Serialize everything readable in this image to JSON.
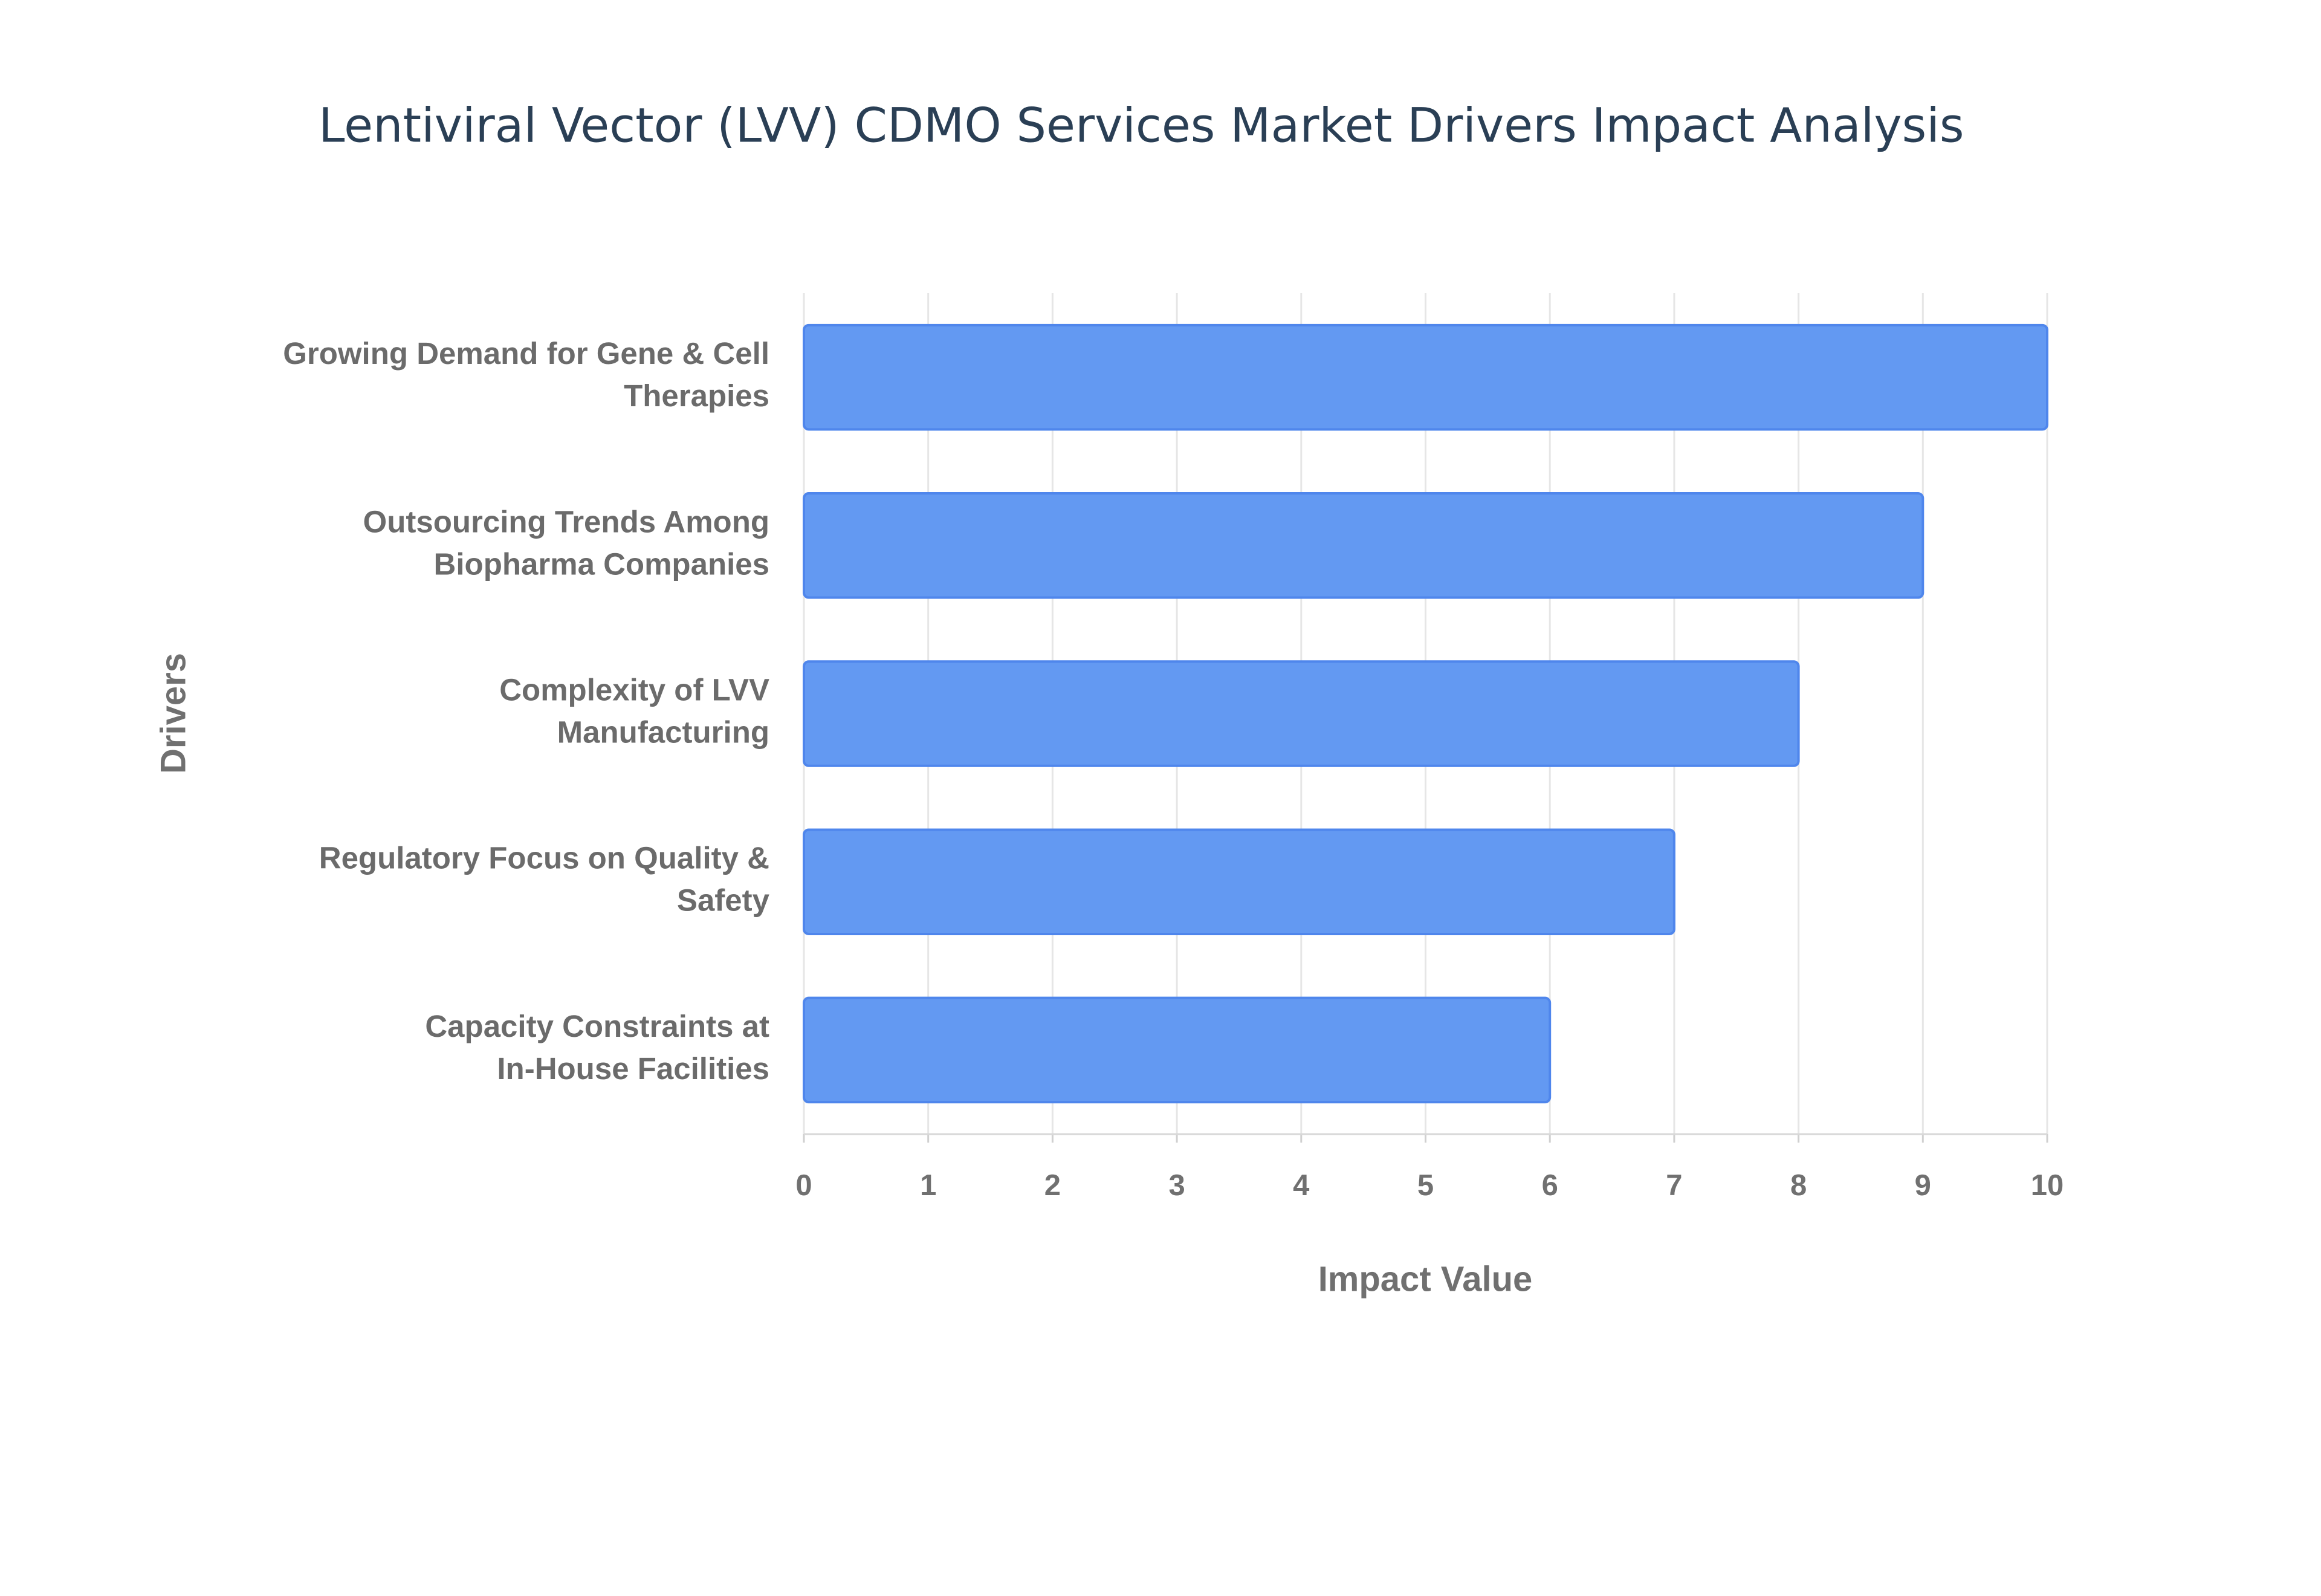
{
  "chart_data": {
    "type": "bar",
    "orientation": "horizontal",
    "title": "Lentiviral Vector (LVV) CDMO Services Market Drivers Impact Analysis",
    "x_label": "Impact Value",
    "y_label": "Drivers",
    "categories": [
      "Growing Demand for Gene & Cell Therapies",
      "Outsourcing Trends Among Biopharma Companies",
      "Complexity of LVV Manufacturing",
      "Regulatory Focus on Quality & Safety",
      "Capacity Constraints at In-House Facilities"
    ],
    "values": [
      10,
      9,
      8,
      7,
      6
    ],
    "color": "#6399f2",
    "xlim": [
      0,
      10
    ],
    "xticks": [
      0,
      1,
      2,
      3,
      4,
      5,
      6,
      7,
      8,
      9,
      10
    ],
    "grid": true
  }
}
